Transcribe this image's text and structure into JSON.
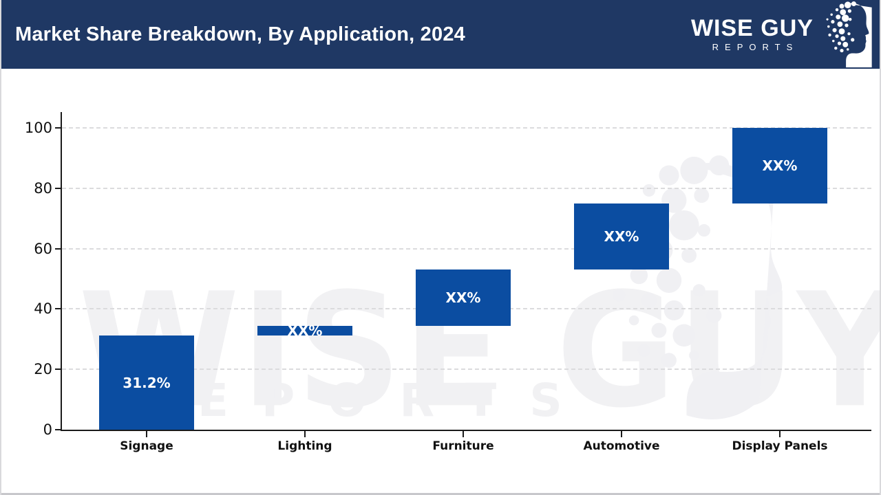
{
  "header": {
    "title": "Market Share Breakdown, By Application, 2024",
    "logo": {
      "line1": "WISE GUY",
      "line2": "REPORTS"
    },
    "bg_color": "#1f3864"
  },
  "watermark": {
    "line1": "WISE GUY",
    "line2": "REPORTS"
  },
  "chart_data": {
    "type": "bar",
    "subtype": "waterfall",
    "title": "Market Share Breakdown, By Application, 2024",
    "categories": [
      "Signage",
      "Lighting",
      "Furniture",
      "Automotive",
      "Display Panels"
    ],
    "segments": [
      {
        "category": "Signage",
        "start": 0,
        "end": 31.2,
        "label": "31.2%"
      },
      {
        "category": "Lighting",
        "start": 31.2,
        "end": 34.5,
        "label": "XX%"
      },
      {
        "category": "Furniture",
        "start": 34.5,
        "end": 53.0,
        "label": "XX%"
      },
      {
        "category": "Automotive",
        "start": 53.0,
        "end": 75.0,
        "label": "XX%"
      },
      {
        "category": "Display Panels",
        "start": 75.0,
        "end": 100.0,
        "label": "XX%"
      }
    ],
    "y_ticks": [
      0,
      20,
      40,
      60,
      80,
      100
    ],
    "ylim": [
      0,
      105
    ],
    "xlabel": "",
    "ylabel": "",
    "grid": "horizontal-dashed",
    "legend": "none",
    "bar_color": "#0b4da1",
    "bar_label_color": "#ffffff",
    "axis_color": "#1a1a1a",
    "gridline_color": "#dbdbdd"
  }
}
